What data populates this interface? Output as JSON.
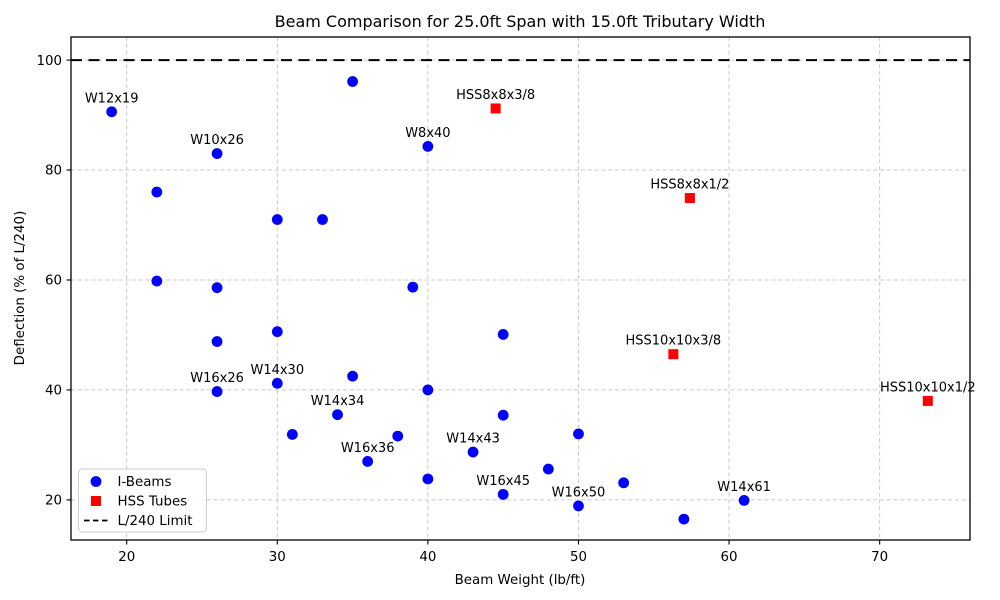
{
  "chart_data": {
    "type": "scatter",
    "title": "Beam Comparison for 25.0ft Span with 15.0ft Tributary Width",
    "xlabel": "Beam Weight (lb/ft)",
    "ylabel": "Deflection (% of L/240)",
    "xlim": [
      16.3,
      76.0
    ],
    "ylim": [
      12.7,
      104.2
    ],
    "xticks": [
      20,
      30,
      40,
      50,
      60,
      70
    ],
    "yticks": [
      20,
      40,
      60,
      80,
      100
    ],
    "grid": true,
    "grid_color": "#c9c9c9",
    "legend_position": "lower-left",
    "hline": {
      "y": 100,
      "label": "L/240 Limit",
      "color": "#000000",
      "style": "dashed"
    },
    "series": [
      {
        "name": "I-Beams",
        "marker": "circle",
        "color": "#0000ff",
        "points": [
          {
            "x": 19,
            "y": 90.6,
            "label": "W12x19"
          },
          {
            "x": 22,
            "y": 76.0
          },
          {
            "x": 22,
            "y": 59.8
          },
          {
            "x": 26,
            "y": 83.0,
            "label": "W10x26"
          },
          {
            "x": 26,
            "y": 58.6
          },
          {
            "x": 26,
            "y": 48.8
          },
          {
            "x": 26,
            "y": 39.7,
            "label": "W16x26"
          },
          {
            "x": 30,
            "y": 71.0
          },
          {
            "x": 30,
            "y": 50.6
          },
          {
            "x": 30,
            "y": 41.2,
            "label": "W14x30"
          },
          {
            "x": 31,
            "y": 31.9
          },
          {
            "x": 33,
            "y": 71.0
          },
          {
            "x": 34,
            "y": 35.5,
            "label": "W14x34"
          },
          {
            "x": 35,
            "y": 96.1
          },
          {
            "x": 35,
            "y": 42.5
          },
          {
            "x": 36,
            "y": 27.0,
            "label": "W16x36"
          },
          {
            "x": 38,
            "y": 31.6
          },
          {
            "x": 39,
            "y": 58.7
          },
          {
            "x": 40,
            "y": 84.3,
            "label": "W8x40"
          },
          {
            "x": 40,
            "y": 40.0
          },
          {
            "x": 40,
            "y": 23.8
          },
          {
            "x": 43,
            "y": 28.7,
            "label": "W14x43"
          },
          {
            "x": 45,
            "y": 50.1
          },
          {
            "x": 45,
            "y": 35.4
          },
          {
            "x": 45,
            "y": 21.0,
            "label": "W16x45"
          },
          {
            "x": 48,
            "y": 25.6
          },
          {
            "x": 50,
            "y": 32.0
          },
          {
            "x": 50,
            "y": 18.9,
            "label": "W16x50"
          },
          {
            "x": 53,
            "y": 23.1
          },
          {
            "x": 57,
            "y": 16.5
          },
          {
            "x": 61,
            "y": 19.9,
            "label": "W14x61"
          }
        ]
      },
      {
        "name": "HSS Tubes",
        "marker": "square",
        "color": "#ff0000",
        "points": [
          {
            "x": 44.5,
            "y": 91.2,
            "label": "HSS8x8x3/8"
          },
          {
            "x": 57.4,
            "y": 74.9,
            "label": "HSS8x8x1/2"
          },
          {
            "x": 56.3,
            "y": 46.5,
            "label": "HSS10x10x3/8"
          },
          {
            "x": 73.2,
            "y": 38.0,
            "label": "HSS10x10x1/2"
          }
        ]
      }
    ]
  }
}
